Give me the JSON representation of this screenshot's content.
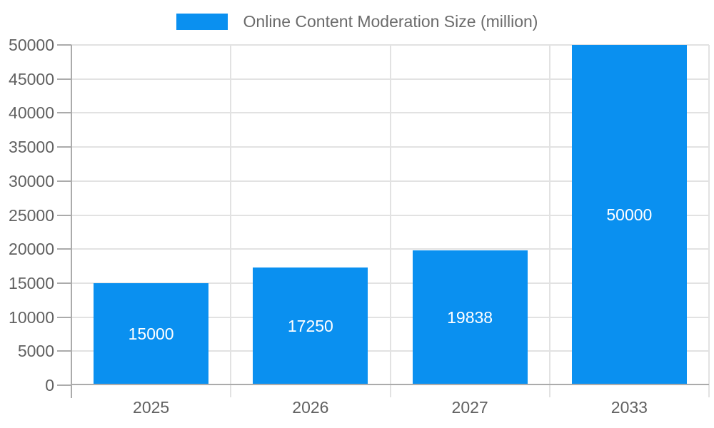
{
  "legend": {
    "label": "Online Content Moderation Size (million)"
  },
  "chart_data": {
    "type": "bar",
    "title": "",
    "categories": [
      "2025",
      "2026",
      "2027",
      "2033"
    ],
    "values": [
      15000,
      17250,
      19838,
      50000
    ],
    "series": [
      {
        "name": "Online Content Moderation Size (million)",
        "values": [
          15000,
          17250,
          19838,
          50000
        ]
      }
    ],
    "xlabel": "",
    "ylabel": "",
    "ylim": [
      0,
      50000
    ],
    "yticks": [
      0,
      5000,
      10000,
      15000,
      20000,
      25000,
      30000,
      35000,
      40000,
      45000,
      50000
    ],
    "grid": true,
    "legend_position": "top",
    "bar_color": "#0a90f0",
    "colors": {
      "bar": "#0a90f0",
      "grid": "#e2e2e2",
      "axis": "#ababab",
      "tick_text": "#616161",
      "legend_text": "#6b6b6b",
      "bar_label": "#ffffff",
      "background": "#ffffff"
    }
  }
}
